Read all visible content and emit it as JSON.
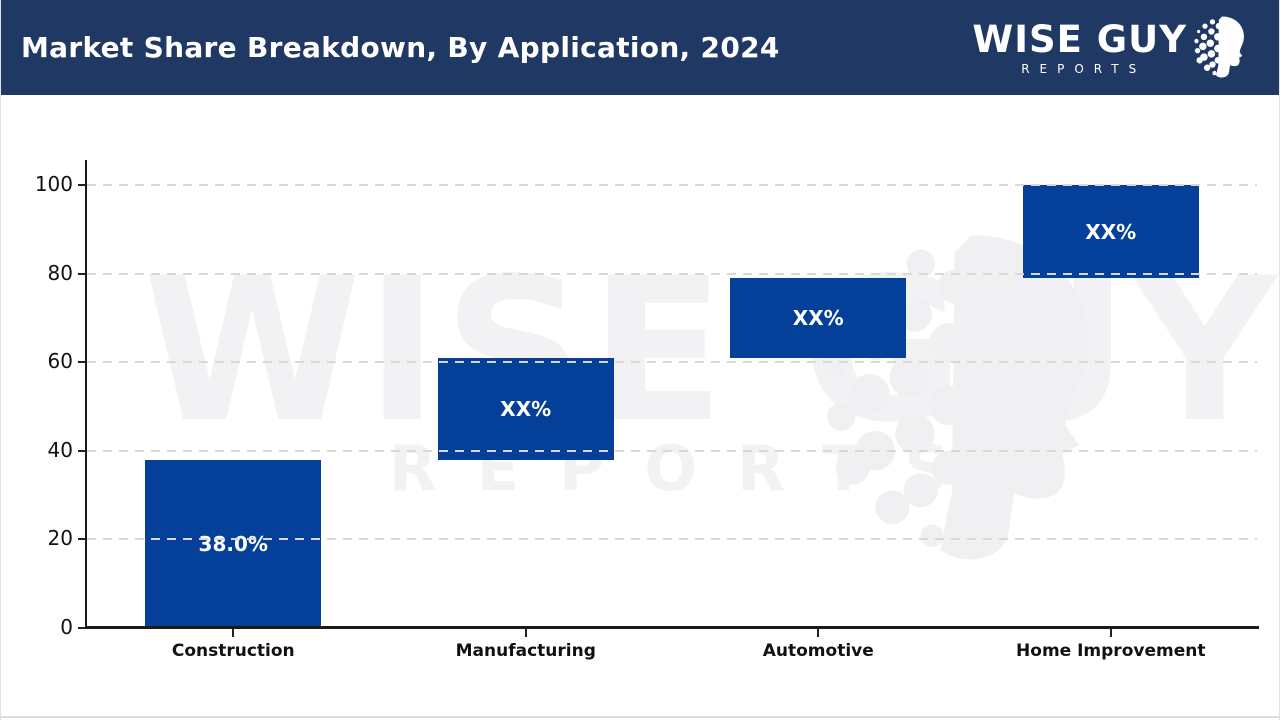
{
  "header": {
    "title": "Market Share Breakdown, By Application, 2024",
    "bg_color": "#1F3864",
    "logo": {
      "line1": "WISE GUY",
      "line2": "REPORTS"
    }
  },
  "watermark": {
    "line1": "WISE GUY",
    "line2": "REPORTS"
  },
  "chart_data": {
    "type": "bar",
    "subtype": "floating-waterfall",
    "title": "Market Share Breakdown, By Application, 2024",
    "categories": [
      "Construction",
      "Manufacturing",
      "Automotive",
      "Home Improvement"
    ],
    "segments": [
      [
        0,
        38
      ],
      [
        38,
        61
      ],
      [
        61,
        79
      ],
      [
        79,
        100
      ]
    ],
    "bar_labels": [
      "38.0%",
      "XX%",
      "XX%",
      "XX%"
    ],
    "ylim": [
      0,
      100
    ],
    "yticks": [
      0,
      20,
      40,
      60,
      80,
      100
    ],
    "grid": "horizontal-dashed",
    "legend": "none",
    "bar_color": "#04409A",
    "bar_label_color": "#FFFFFF"
  }
}
